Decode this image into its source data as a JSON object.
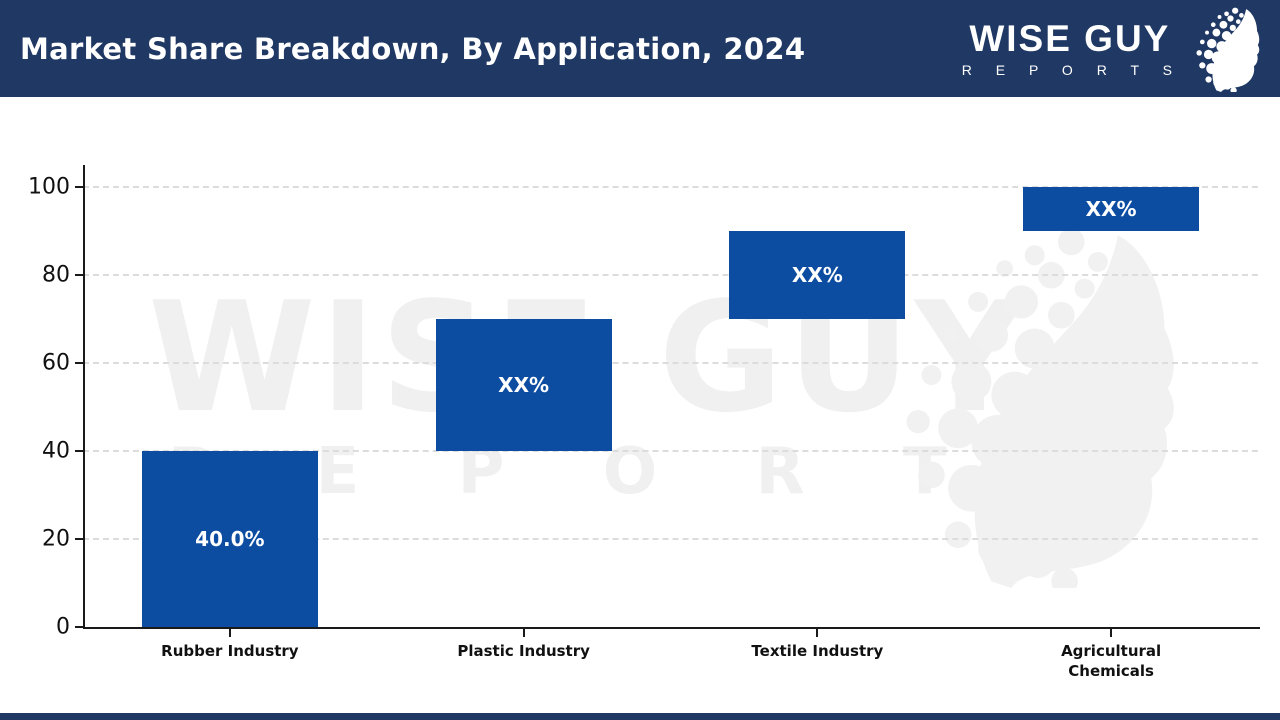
{
  "header": {
    "title": "Market Share Breakdown, By Application, 2024",
    "bg_color": "#1f3864",
    "logo": {
      "line1": "WISE GUY",
      "line2": "R E P O R T S"
    }
  },
  "watermark": {
    "line1": "WISE GUY",
    "line2": "R E P O R T S"
  },
  "chart_data": {
    "type": "bar",
    "subtype": "waterfall",
    "title": "Market Share Breakdown, By Application, 2024",
    "categories": [
      "Rubber Industry",
      "Plastic Industry",
      "Textile Industry",
      "Agricultural Chemicals"
    ],
    "segments": [
      [
        0,
        40
      ],
      [
        40,
        70
      ],
      [
        70,
        90
      ],
      [
        90,
        100
      ]
    ],
    "values": [
      40,
      30,
      20,
      10
    ],
    "bar_labels": [
      "40.0%",
      "XX%",
      "XX%",
      "XX%"
    ],
    "yticks": [
      0,
      20,
      40,
      60,
      80,
      100
    ],
    "ylim": [
      0,
      105
    ],
    "xlabel": "",
    "ylabel": "",
    "grid": "horizontal-dashed",
    "legend": "none",
    "bar_color": "#0c4da2",
    "bar_label_color": "#ffffff",
    "grid_color": "#dcdcdc",
    "axis_color": "#1a1a1a"
  },
  "footer": {
    "bg_color": "#1f3864"
  }
}
